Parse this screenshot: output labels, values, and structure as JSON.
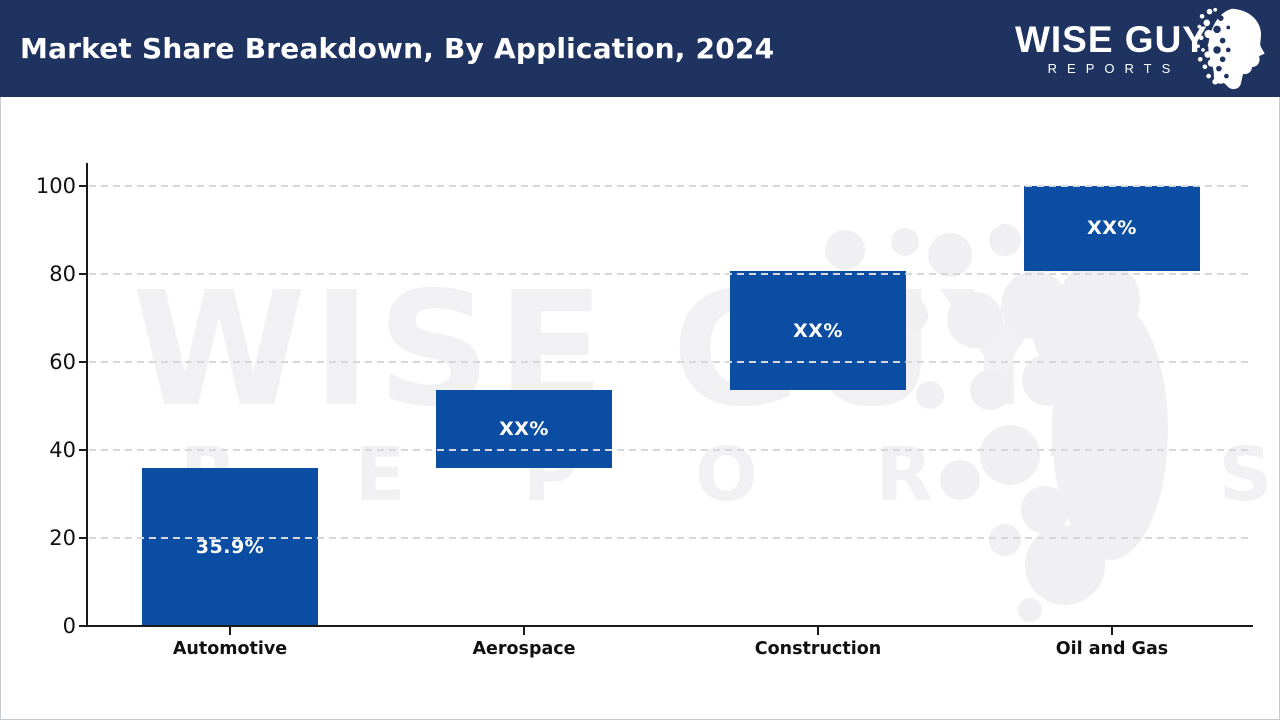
{
  "header": {
    "title": "Market Share Breakdown, By Application, 2024",
    "bg_color": "#1e3360",
    "logo": {
      "line1": "WISE GUY",
      "line2": "REPORTS"
    }
  },
  "watermark": {
    "line1": "WISE GUY",
    "line2": "R E P O R T S"
  },
  "chart_data": {
    "type": "bar",
    "subtype": "waterfall-floating-bars",
    "title": "Market Share Breakdown, By Application, 2024",
    "categories": [
      "Automotive",
      "Aerospace",
      "Construction",
      "Oil and Gas"
    ],
    "segments": [
      {
        "category": "Automotive",
        "start": 0,
        "end": 35.9,
        "label": "35.9%"
      },
      {
        "category": "Aerospace",
        "start": 35.9,
        "end": 53.6,
        "label": "XX%"
      },
      {
        "category": "Construction",
        "start": 53.6,
        "end": 80.7,
        "label": "XX%"
      },
      {
        "category": "Oil and Gas",
        "start": 80.7,
        "end": 100,
        "label": "XX%"
      }
    ],
    "xlabel": "",
    "ylabel": "",
    "ylim": [
      0,
      100
    ],
    "yticks": [
      0,
      20,
      40,
      60,
      80,
      100
    ],
    "grid": "horizontal dashed, drawn over bars",
    "legend": "none",
    "bar_color": "#0b4da2",
    "bar_label_color": "#ffffff"
  }
}
